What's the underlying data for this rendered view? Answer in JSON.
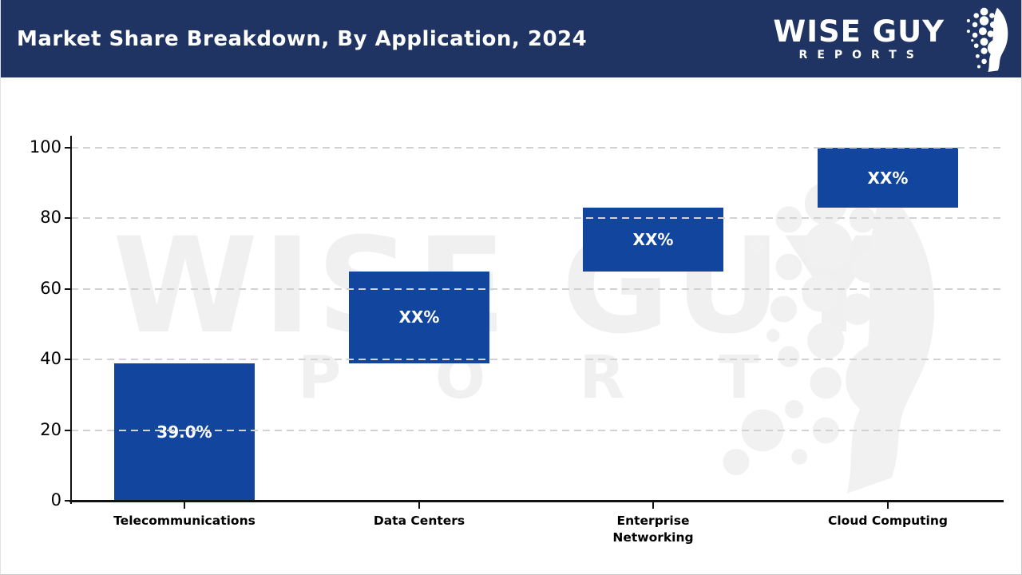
{
  "header": {
    "title": "Market Share Breakdown, By Application, 2024",
    "bg_color": "#1f3462",
    "logo": {
      "line1": "WISE GUY",
      "line2": "REPORTS"
    }
  },
  "watermark": {
    "line1": "WISE GUY",
    "line2": "PORTS"
  },
  "chart_data": {
    "type": "bar",
    "subtype": "waterfall",
    "title": "Market Share Breakdown, By Application, 2024",
    "categories": [
      "Telecommunications",
      "Data Centers",
      "Enterprise\nNetworking",
      "Cloud Computing"
    ],
    "values": [
      39,
      26,
      18,
      17
    ],
    "segments": [
      [
        0,
        39
      ],
      [
        39,
        65
      ],
      [
        65,
        83
      ],
      [
        83,
        100
      ]
    ],
    "bar_value_labels": [
      "39.0%",
      "XX%",
      "XX%",
      "XX%"
    ],
    "xlabel": "",
    "ylabel": "",
    "ylim": [
      0,
      100
    ],
    "yticks": [
      0,
      20,
      40,
      60,
      80,
      100
    ],
    "grid": "horizontal dashed, drawn above bars",
    "legend": "none",
    "bar_color": "#12469e",
    "gridline_color": "#d2d2d2"
  }
}
